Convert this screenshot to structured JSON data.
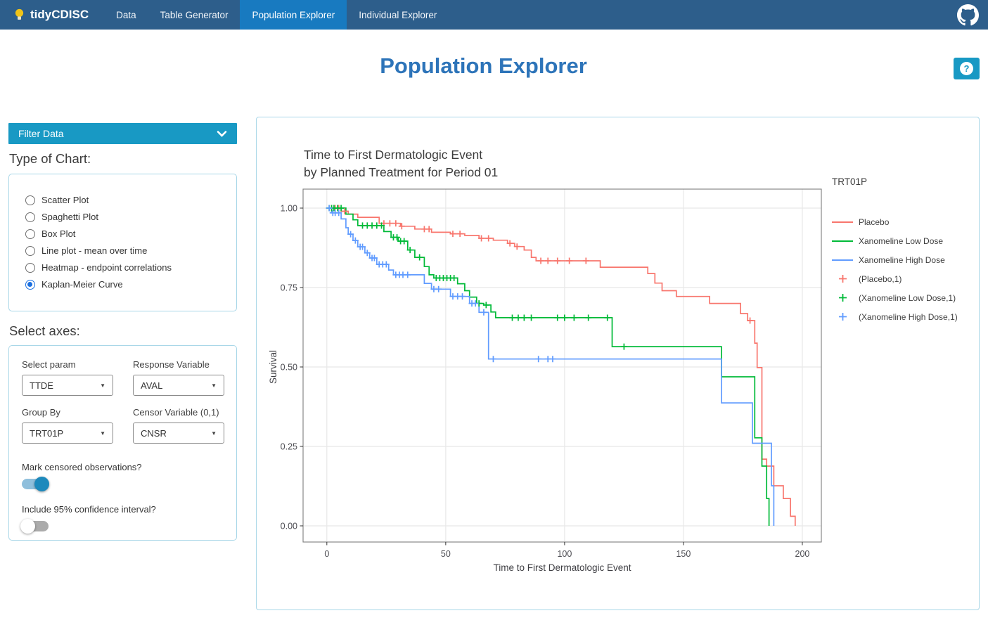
{
  "navbar": {
    "brand": "tidyCDISC",
    "tabs": [
      {
        "label": "Data",
        "active": false
      },
      {
        "label": "Table Generator",
        "active": false
      },
      {
        "label": "Population Explorer",
        "active": true
      },
      {
        "label": "Individual Explorer",
        "active": false
      }
    ]
  },
  "page": {
    "title": "Population Explorer",
    "help_label": "?"
  },
  "sidebar": {
    "filter": {
      "label": "Filter Data"
    },
    "chart_type": {
      "heading": "Type of Chart:",
      "selected": "Kaplan-Meier Curve",
      "options": [
        "Scatter Plot",
        "Spaghetti Plot",
        "Box Plot",
        "Line plot - mean over time",
        "Heatmap - endpoint correlations",
        "Kaplan-Meier Curve"
      ]
    },
    "axes": {
      "heading": "Select axes:",
      "fields": [
        {
          "label": "Select param",
          "value": "TTDE"
        },
        {
          "label": "Response Variable",
          "value": "AVAL"
        },
        {
          "label": "Group By",
          "value": "TRT01P"
        },
        {
          "label": "Censor Variable (0,1)",
          "value": "CNSR"
        }
      ],
      "toggles": [
        {
          "label": "Mark censored observations?",
          "on": true
        },
        {
          "label": "Include 95% confidence interval?",
          "on": false
        }
      ]
    }
  },
  "theme": {
    "navbar_bg": "#2d5e8b",
    "navbar_active": "#187ac0",
    "panel_header": "#1899c4",
    "title_color": "#2d74b9",
    "accent_border": "#a9d7e8",
    "grid_color": "#e8e8e8",
    "panel_border": "#7d7d7d"
  },
  "chart_data": {
    "type": "line",
    "subtype": "kaplan-meier-step",
    "title_lines": [
      "Time to First Dermatologic Event",
      "by Planned Treatment for Period 01"
    ],
    "xlabel": "Time to First Dermatologic Event",
    "ylabel": "Survival",
    "legend_title": "TRT01P",
    "legend_position": "right",
    "grid": true,
    "xlim": [
      -10,
      208
    ],
    "ylim": [
      0,
      1
    ],
    "x_ticks": [
      0,
      50,
      100,
      150,
      200
    ],
    "y_ticks": [
      {
        "value": 1.0,
        "label": "1.00"
      },
      {
        "value": 0.75,
        "label": "0.75"
      },
      {
        "value": 0.5,
        "label": "0.50"
      },
      {
        "value": 0.25,
        "label": "0.25"
      },
      {
        "value": 0.0,
        "label": "0.00"
      }
    ],
    "series": [
      {
        "name": "Placebo",
        "color": "#F8766D",
        "steps": [
          [
            0,
            1.0
          ],
          [
            6,
            0.99
          ],
          [
            9,
            0.981
          ],
          [
            13,
            0.971
          ],
          [
            22,
            0.952
          ],
          [
            31,
            0.943
          ],
          [
            37,
            0.934
          ],
          [
            44,
            0.924
          ],
          [
            52,
            0.919
          ],
          [
            58,
            0.914
          ],
          [
            64,
            0.905
          ],
          [
            70,
            0.899
          ],
          [
            76,
            0.889
          ],
          [
            79,
            0.879
          ],
          [
            83,
            0.868
          ],
          [
            86,
            0.845
          ],
          [
            88,
            0.834
          ],
          [
            115,
            0.814
          ],
          [
            135,
            0.794
          ],
          [
            138,
            0.764
          ],
          [
            141,
            0.74
          ],
          [
            147,
            0.722
          ],
          [
            161,
            0.7
          ],
          [
            174,
            0.668
          ],
          [
            177,
            0.646
          ],
          [
            180,
            0.575
          ],
          [
            181,
            0.498
          ],
          [
            183,
            0.21
          ],
          [
            185,
            0.188
          ],
          [
            188,
            0.126
          ],
          [
            192,
            0.086
          ],
          [
            195,
            0.03
          ],
          [
            197,
            0.0
          ]
        ],
        "censored": [
          [
            2,
            1
          ],
          [
            3.5,
            1
          ],
          [
            5,
            1
          ],
          [
            7.5,
            0.99
          ],
          [
            24,
            0.952
          ],
          [
            26.5,
            0.952
          ],
          [
            29,
            0.952
          ],
          [
            31.5,
            0.943
          ],
          [
            41,
            0.934
          ],
          [
            43,
            0.934
          ],
          [
            53,
            0.919
          ],
          [
            56,
            0.919
          ],
          [
            65,
            0.905
          ],
          [
            68,
            0.905
          ],
          [
            77,
            0.889
          ],
          [
            80,
            0.879
          ],
          [
            90,
            0.834
          ],
          [
            93,
            0.834
          ],
          [
            97,
            0.834
          ],
          [
            102,
            0.834
          ],
          [
            109,
            0.834
          ],
          [
            178,
            0.646
          ]
        ]
      },
      {
        "name": "Xanomeline Low Dose",
        "color": "#00BA38",
        "steps": [
          [
            0,
            1.0
          ],
          [
            8,
            0.981
          ],
          [
            11,
            0.963
          ],
          [
            13,
            0.945
          ],
          [
            24,
            0.926
          ],
          [
            27,
            0.908
          ],
          [
            30,
            0.896
          ],
          [
            34,
            0.868
          ],
          [
            37,
            0.845
          ],
          [
            41,
            0.816
          ],
          [
            43,
            0.79
          ],
          [
            45,
            0.78
          ],
          [
            55,
            0.762
          ],
          [
            58,
            0.74
          ],
          [
            60,
            0.72
          ],
          [
            63,
            0.7
          ],
          [
            66,
            0.695
          ],
          [
            69,
            0.673
          ],
          [
            71,
            0.655
          ],
          [
            120,
            0.564
          ],
          [
            166,
            0.469
          ],
          [
            180,
            0.277
          ],
          [
            183,
            0.188
          ],
          [
            185,
            0.086
          ],
          [
            186,
            0.0
          ]
        ],
        "censored": [
          [
            1,
            1
          ],
          [
            2,
            1
          ],
          [
            3,
            1
          ],
          [
            4.5,
            1
          ],
          [
            6,
            1
          ],
          [
            15,
            0.945
          ],
          [
            17,
            0.945
          ],
          [
            19,
            0.945
          ],
          [
            21,
            0.945
          ],
          [
            23,
            0.945
          ],
          [
            28,
            0.908
          ],
          [
            29.5,
            0.908
          ],
          [
            31,
            0.896
          ],
          [
            32.5,
            0.896
          ],
          [
            35,
            0.868
          ],
          [
            39,
            0.845
          ],
          [
            46,
            0.78
          ],
          [
            47.5,
            0.78
          ],
          [
            49,
            0.78
          ],
          [
            50.5,
            0.78
          ],
          [
            52,
            0.78
          ],
          [
            53.5,
            0.78
          ],
          [
            64,
            0.7
          ],
          [
            67,
            0.695
          ],
          [
            78,
            0.655
          ],
          [
            80.5,
            0.655
          ],
          [
            83,
            0.655
          ],
          [
            86,
            0.655
          ],
          [
            97,
            0.655
          ],
          [
            100,
            0.655
          ],
          [
            104,
            0.655
          ],
          [
            110,
            0.655
          ],
          [
            118,
            0.655
          ],
          [
            125,
            0.564
          ]
        ]
      },
      {
        "name": "Xanomeline High Dose",
        "color": "#619CFF",
        "steps": [
          [
            0,
            1.0
          ],
          [
            2,
            0.985
          ],
          [
            6,
            0.966
          ],
          [
            8,
            0.938
          ],
          [
            9,
            0.918
          ],
          [
            11,
            0.898
          ],
          [
            13,
            0.878
          ],
          [
            16,
            0.859
          ],
          [
            18,
            0.843
          ],
          [
            21,
            0.823
          ],
          [
            26,
            0.805
          ],
          [
            28,
            0.79
          ],
          [
            41,
            0.763
          ],
          [
            44,
            0.745
          ],
          [
            52,
            0.722
          ],
          [
            60,
            0.7
          ],
          [
            64,
            0.672
          ],
          [
            68,
            0.525
          ],
          [
            166,
            0.387
          ],
          [
            179,
            0.26
          ],
          [
            187,
            0.126
          ],
          [
            188,
            0.0
          ]
        ],
        "censored": [
          [
            1,
            1
          ],
          [
            2.5,
            0.985
          ],
          [
            3.5,
            0.985
          ],
          [
            5,
            0.985
          ],
          [
            10,
            0.918
          ],
          [
            12,
            0.898
          ],
          [
            14,
            0.878
          ],
          [
            15,
            0.878
          ],
          [
            17,
            0.859
          ],
          [
            19,
            0.843
          ],
          [
            20,
            0.843
          ],
          [
            22,
            0.823
          ],
          [
            23.5,
            0.823
          ],
          [
            25,
            0.823
          ],
          [
            29,
            0.79
          ],
          [
            30.5,
            0.79
          ],
          [
            32,
            0.79
          ],
          [
            34,
            0.79
          ],
          [
            45,
            0.745
          ],
          [
            47,
            0.745
          ],
          [
            53,
            0.722
          ],
          [
            55,
            0.722
          ],
          [
            57,
            0.722
          ],
          [
            61,
            0.7
          ],
          [
            62.5,
            0.7
          ],
          [
            66,
            0.672
          ],
          [
            70,
            0.525
          ],
          [
            89,
            0.525
          ],
          [
            93,
            0.525
          ],
          [
            95,
            0.525
          ]
        ]
      }
    ],
    "censor_legend": [
      {
        "label": "(Placebo,1)",
        "color": "#F8766D"
      },
      {
        "label": "(Xanomeline Low Dose,1)",
        "color": "#00BA38"
      },
      {
        "label": "(Xanomeline High Dose,1)",
        "color": "#619CFF"
      }
    ]
  }
}
